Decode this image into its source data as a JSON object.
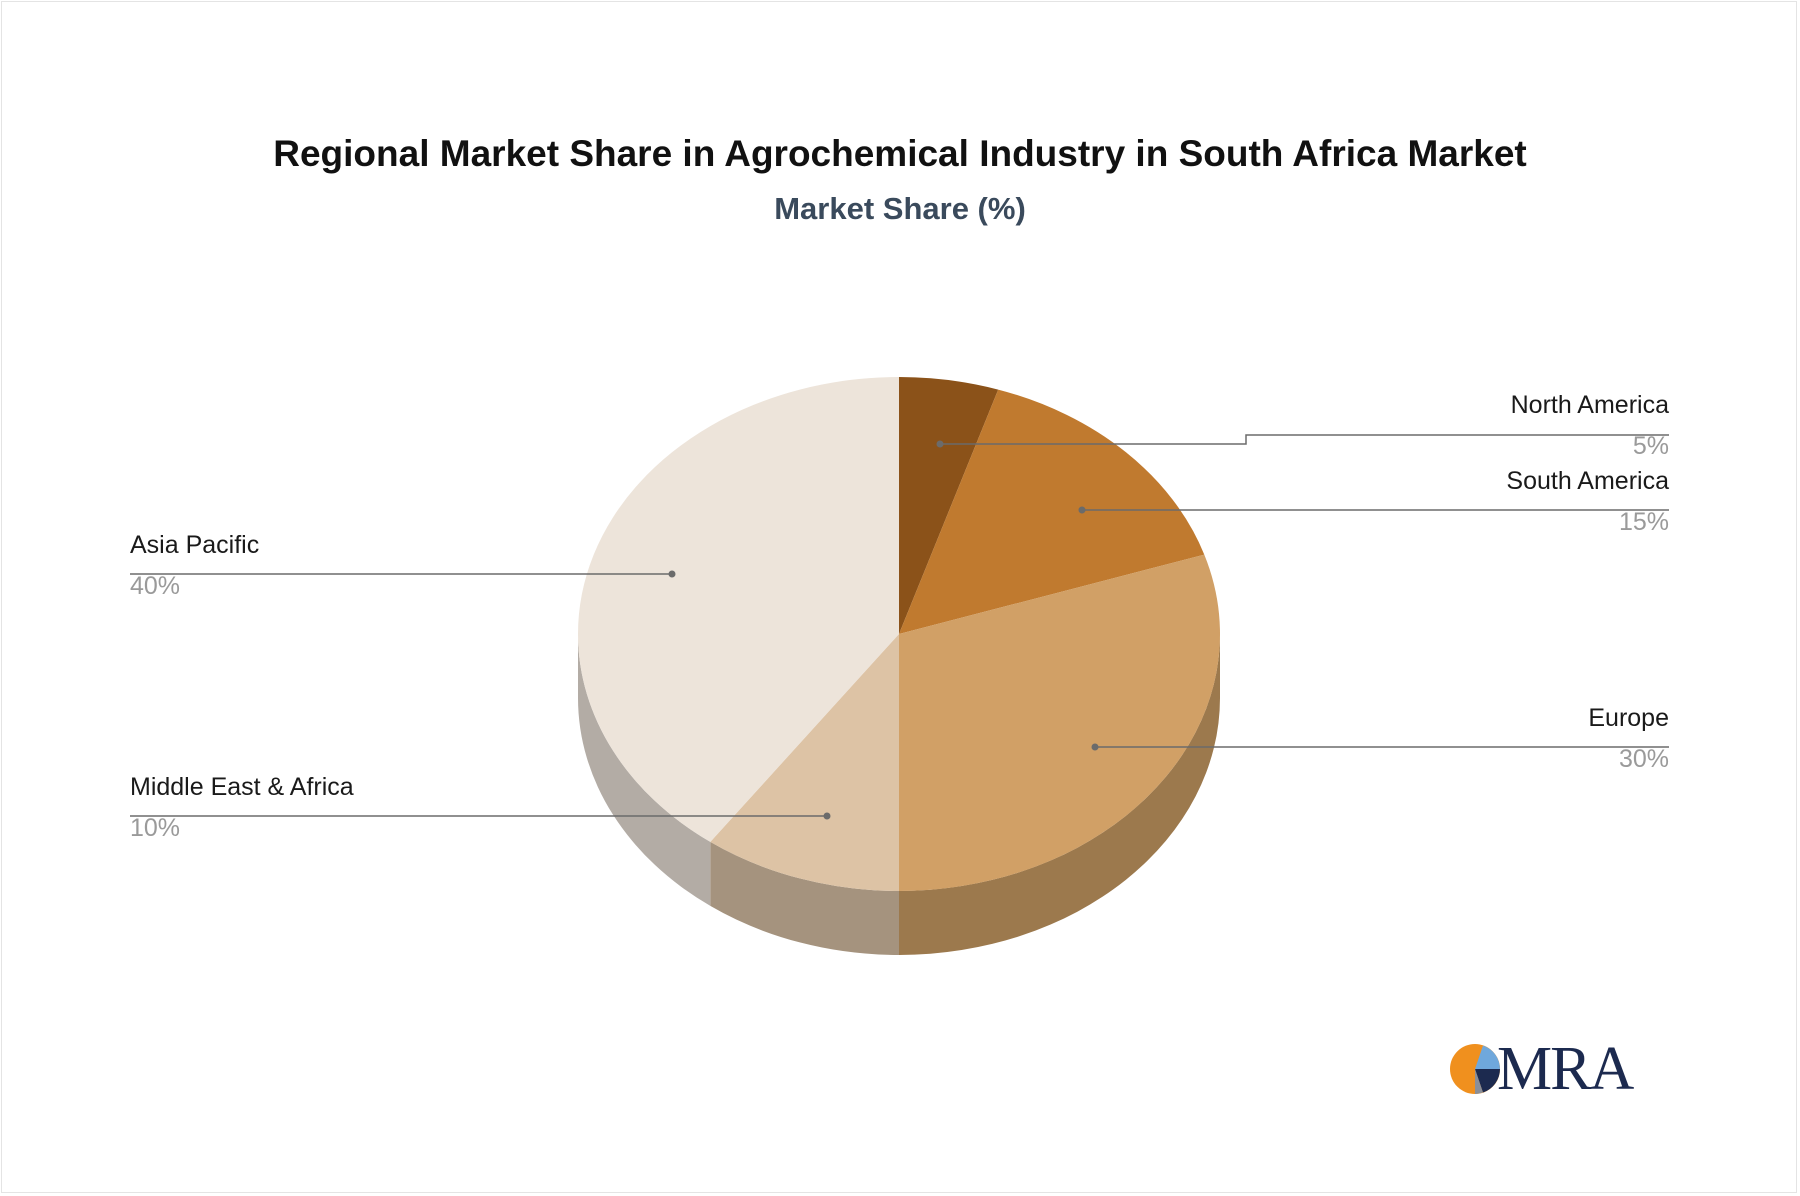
{
  "chart_data": {
    "type": "pie",
    "title": "Regional Market Share in Agrochemical Industry in South Africa Market",
    "subtitle": "Market Share (%)",
    "slices": [
      {
        "label": "North America",
        "value": 5,
        "value_label": "5%",
        "color": "#8b5219",
        "side_color": "#6e4214"
      },
      {
        "label": "South America",
        "value": 15,
        "value_label": "15%",
        "color": "#c07a2f",
        "side_color": "#9a6226"
      },
      {
        "label": "Europe",
        "value": 30,
        "value_label": "30%",
        "color": "#d1a066",
        "side_color": "#9c794d"
      },
      {
        "label": "Middle East & Africa",
        "value": 10,
        "value_label": "10%",
        "color": "#ddc3a5",
        "side_color": "#a5937e"
      },
      {
        "label": "Asia Pacific",
        "value": 40,
        "value_label": "40%",
        "color": "#ede4da",
        "side_color": "#b3aca5"
      }
    ]
  },
  "logo": {
    "text": "MRA",
    "colors": {
      "orange": "#f0901e",
      "navy": "#1c2a4f",
      "blue": "#6fa8dc",
      "gray": "#8a8f99"
    }
  }
}
